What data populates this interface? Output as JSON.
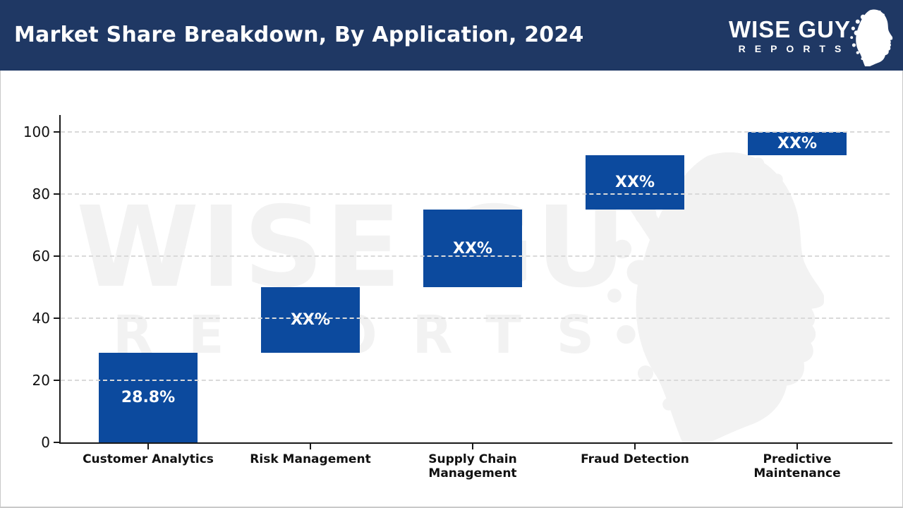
{
  "header": {
    "title": "Market Share Breakdown, By Application, 2024",
    "logo": {
      "line1": "WISE GUY",
      "line2": "REPORTS"
    }
  },
  "watermark": {
    "line1": "WISE GUY",
    "line2": "REPORTS"
  },
  "chart_data": {
    "type": "bar",
    "subtype": "waterfall",
    "title": "Market Share Breakdown, By Application, 2024",
    "xlabel": "",
    "ylabel": "",
    "ylim": [
      0,
      100
    ],
    "yticks": [
      0,
      20,
      40,
      60,
      80,
      100
    ],
    "grid": "horizontal-dashed",
    "legend": "none",
    "bar_color": "#0c4a9e",
    "bar_label_color": "#ffffff",
    "categories": [
      "Customer Analytics",
      "Risk Management",
      "Supply Chain Management",
      "Fraud Detection",
      "Predictive Maintenance"
    ],
    "segments": [
      {
        "category": "Customer Analytics",
        "start": 0.0,
        "end": 28.8,
        "size": 28.8,
        "label": "28.8%"
      },
      {
        "category": "Risk Management",
        "start": 28.8,
        "end": 50.0,
        "size": 21.2,
        "label": "XX%"
      },
      {
        "category": "Supply Chain Management",
        "start": 50.0,
        "end": 75.0,
        "size": 25.0,
        "label": "XX%"
      },
      {
        "category": "Fraud Detection",
        "start": 75.0,
        "end": 92.5,
        "size": 17.5,
        "label": "XX%"
      },
      {
        "category": "Predictive Maintenance",
        "start": 92.5,
        "end": 100.0,
        "size": 7.5,
        "label": "XX%"
      }
    ]
  }
}
